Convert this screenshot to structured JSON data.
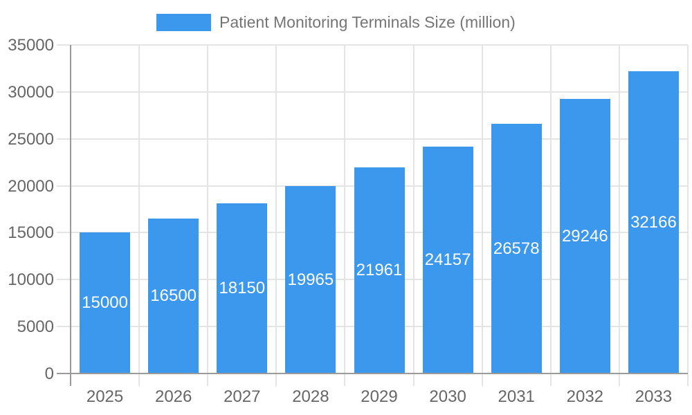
{
  "legend": {
    "label": "Patient Monitoring Terminals Size (million)"
  },
  "chart_data": {
    "type": "bar",
    "title": "Patient Monitoring Terminals Size (million)",
    "categories": [
      "2025",
      "2026",
      "2027",
      "2028",
      "2029",
      "2030",
      "2031",
      "2032",
      "2033"
    ],
    "values": [
      15000,
      16500,
      18150,
      19965,
      21961,
      24157,
      26578,
      29246,
      32166
    ],
    "xlabel": "",
    "ylabel": "",
    "ylim": [
      0,
      35000
    ],
    "yticks": [
      0,
      5000,
      10000,
      15000,
      20000,
      25000,
      30000,
      35000
    ],
    "grid": true,
    "legend_position": "top",
    "value_labels": "inside-center",
    "colors": {
      "bar": "#3B98EC",
      "grid": "#e4e4e4",
      "axis": "#9a9a9a",
      "tick_label": "#666666",
      "legend_text": "#757575",
      "bar_label": "#ffffff"
    }
  }
}
